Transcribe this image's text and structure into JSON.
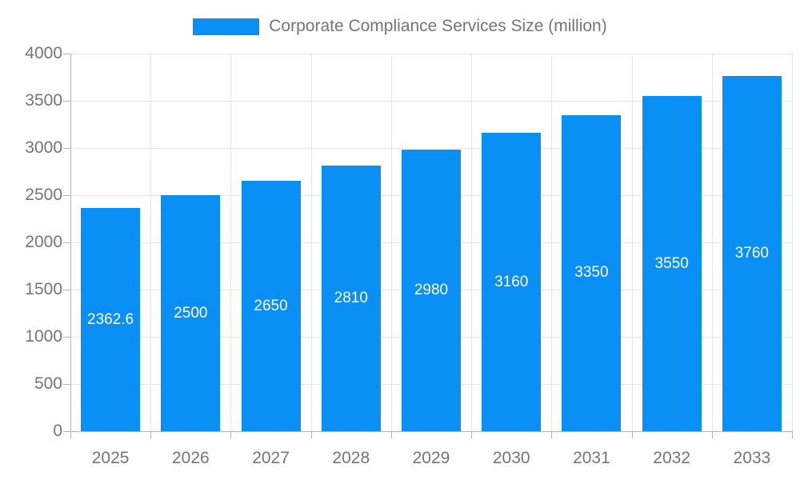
{
  "chart_data": {
    "type": "bar",
    "title": "Corporate Compliance Services Size (million)",
    "categories": [
      "2025",
      "2026",
      "2027",
      "2028",
      "2029",
      "2030",
      "2031",
      "2032",
      "2033"
    ],
    "values": [
      2362.6,
      2500,
      2650,
      2810,
      2980,
      3160,
      3350,
      3550,
      3760
    ],
    "xlabel": "",
    "ylabel": "",
    "ylim": [
      0,
      4000
    ],
    "ytick_step": 500,
    "grid": true,
    "legend_position": "top",
    "value_labels": "inside-center",
    "colors": {
      "bar": "#0a8ff5",
      "value_label": "#ffffff",
      "axis_text": "#757575",
      "axis_line": "#b3b3b3",
      "gridline": "#e6e6e6",
      "background": "#ffffff"
    }
  }
}
